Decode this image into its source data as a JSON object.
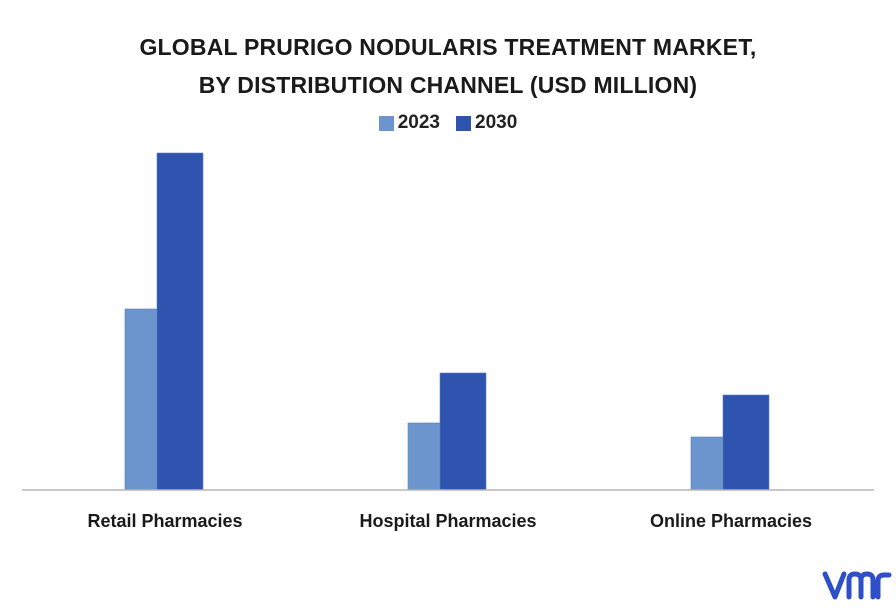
{
  "chart_data": {
    "type": "bar",
    "title": "GLOBAL PRURIGO NODULARIS TREATMENT MARKET, BY DISTRIBUTION CHANNEL (USD MILLION)",
    "title_lines": [
      "GLOBAL PRURIGO NODULARIS TREATMENT MARKET,",
      "BY DISTRIBUTION CHANNEL (USD MILLION)"
    ],
    "categories": [
      "Retail Pharmacies",
      "Hospital Pharmacies",
      "Online Pharmacies"
    ],
    "series": [
      {
        "name": "2023",
        "color": "#6b95cc",
        "values": [
          181,
          67,
          53
        ]
      },
      {
        "name": "2030",
        "color": "#2e54b0",
        "values": [
          337,
          117,
          95
        ]
      }
    ],
    "ylim": [
      0,
      337
    ],
    "grid": false,
    "legend_position": "top-center",
    "xlabel": "",
    "ylabel": ""
  },
  "brand": {
    "logo_icon": "vmr-logo-icon",
    "color": "#2f4fc9"
  }
}
